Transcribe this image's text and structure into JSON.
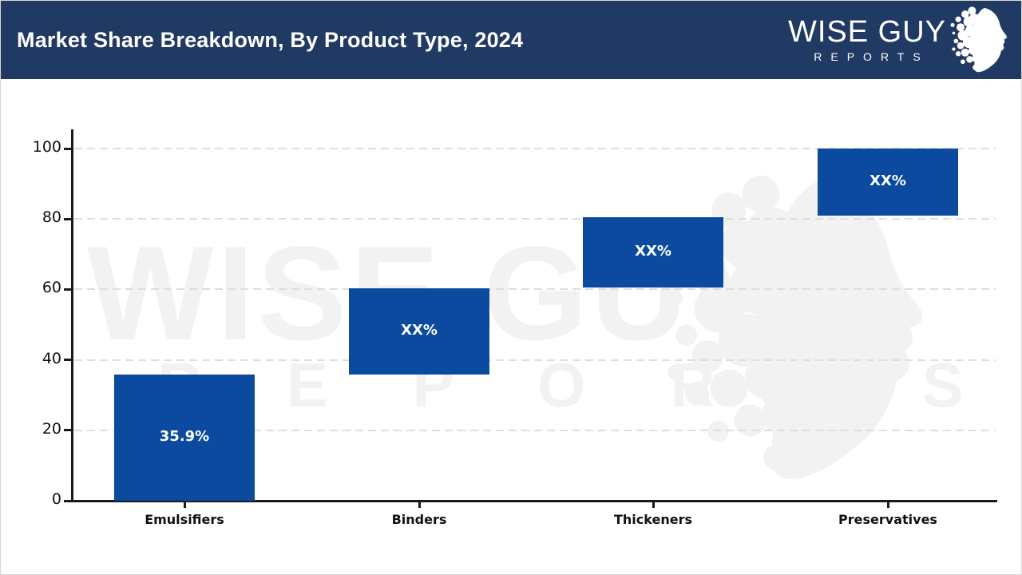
{
  "header": {
    "title": "Market Share Breakdown, By Product Type, 2024",
    "logo": {
      "line1": "WISE GUY",
      "line2": "REPORTS"
    }
  },
  "watermark": {
    "line1": "WISE GUY",
    "line2": "R E P O R T S"
  },
  "colors": {
    "header_bg": "#213a64",
    "bar_fill": "#0b4a9f",
    "bar_label_text": "#ffffff",
    "axis_text": "#111111",
    "gridline": "#dedede",
    "watermark": "#f2f2f2"
  },
  "chart_data": {
    "type": "bar",
    "subtype": "waterfall",
    "title": "Market Share Breakdown, By Product Type, 2024",
    "xlabel": "",
    "ylabel": "",
    "categories": [
      "Emulsifiers",
      "Binders",
      "Thickeners",
      "Preservatives"
    ],
    "segments": [
      {
        "category": "Emulsifiers",
        "start": 0,
        "end": 35.9,
        "label": "35.9%"
      },
      {
        "category": "Binders",
        "start": 35.9,
        "end": 60.3,
        "label": "XX%"
      },
      {
        "category": "Thickeners",
        "start": 60.6,
        "end": 80.5,
        "label": "XX%"
      },
      {
        "category": "Preservatives",
        "start": 80.9,
        "end": 100,
        "label": "XX%"
      }
    ],
    "yticks": [
      0,
      20,
      40,
      60,
      80,
      100
    ],
    "ylim": [
      0,
      105
    ],
    "grid": "horizontal-dashed",
    "legend": "none"
  }
}
